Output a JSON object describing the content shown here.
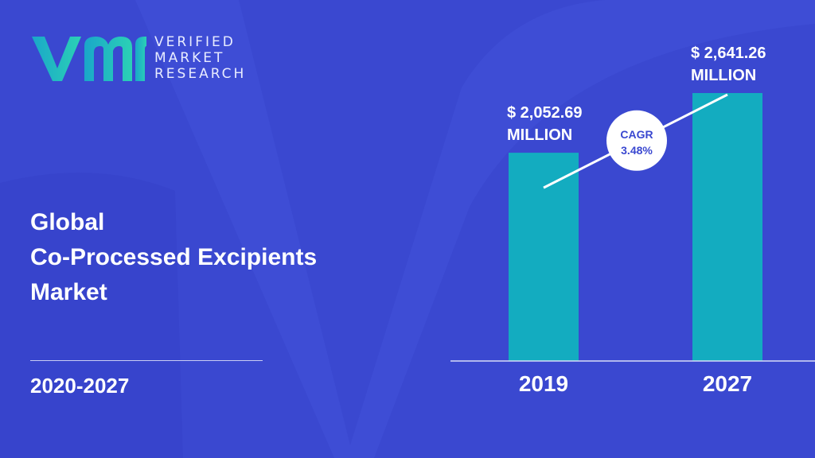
{
  "brand": {
    "lines": [
      "VERIFIED",
      "MARKET",
      "RESEARCH"
    ],
    "mark_colors": [
      "#1aa7c9",
      "#2bd1b5"
    ]
  },
  "report": {
    "title_lines": [
      "Global",
      "Co-Processed Excipients",
      "Market"
    ],
    "period": "2020-2027"
  },
  "colors": {
    "background": "#3a48d0",
    "bar": "#13acc0",
    "accent_text": "#3a48d0"
  },
  "chart_data": {
    "type": "bar",
    "categories": [
      "2019",
      "2027"
    ],
    "values": [
      2052.69,
      2641.26
    ],
    "value_labels": [
      [
        "$ 2,052.69",
        "MILLION"
      ],
      [
        "$ 2,641.26",
        "MILLION"
      ]
    ],
    "ylim": [
      0,
      2900
    ],
    "grid": false,
    "annotation": {
      "lines": [
        "CAGR",
        "3.48%"
      ]
    }
  }
}
